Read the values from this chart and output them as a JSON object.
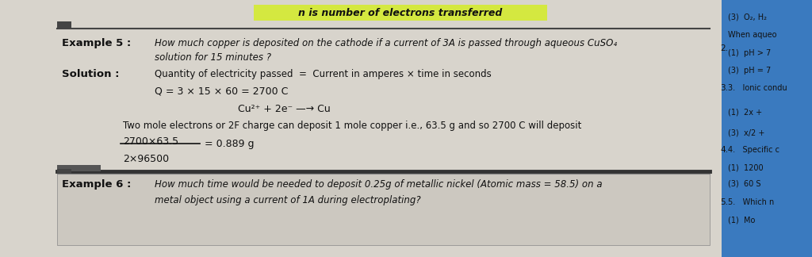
{
  "bg_color": "#c8c0b8",
  "page_color": "#d8d4cc",
  "highlight_color": "#d4e840",
  "highlight_text": "n is number of electrons transferred",
  "right_strip_color": "#3a7abf",
  "main_box_color": "#ccc8c0",
  "example5_label": "Example 5 :",
  "example5_q1": "How much copper is deposited on the cathode if a current of 3A is passed through aqueous CuSO₄",
  "example5_q2": "solution for 15 minutes ?",
  "solution_label": "Solution :",
  "sol_line1": "Quantity of electricity passed  =  Current in amperes × time in seconds",
  "sol_line2": "Q = 3 × 15 × 60 = 2700 C",
  "sol_line3": "Cu²⁺ + 2e⁻ —→ Cu",
  "sol_line4": "Two mole electrons or 2F charge can deposit 1 mole copper i.e., 63.5 g and so 2700 C will deposit",
  "sol_frac_num": "2700×63.5",
  "sol_frac_den": "2×96500",
  "sol_frac_result": "= 0.889 g",
  "example6_label": "Example 6 :",
  "example6_q1": "How much time would be needed to deposit 0.25g of metallic nickel (Atomic mass = 58.5) on a",
  "example6_q2": "metal object using a current of 1A during electroplating?",
  "right_text": [
    "(3)  O₂, H₂",
    "When aqueo",
    "(1)  pH > 7",
    "(3)  pH = 7",
    "3.   Ionic condu",
    "(1)  2x +",
    "(3)  x/2 +",
    "4.   Specific c",
    "(1)  1200",
    "(3)  60 S",
    "5.   Which n",
    "(1)  Mo"
  ]
}
